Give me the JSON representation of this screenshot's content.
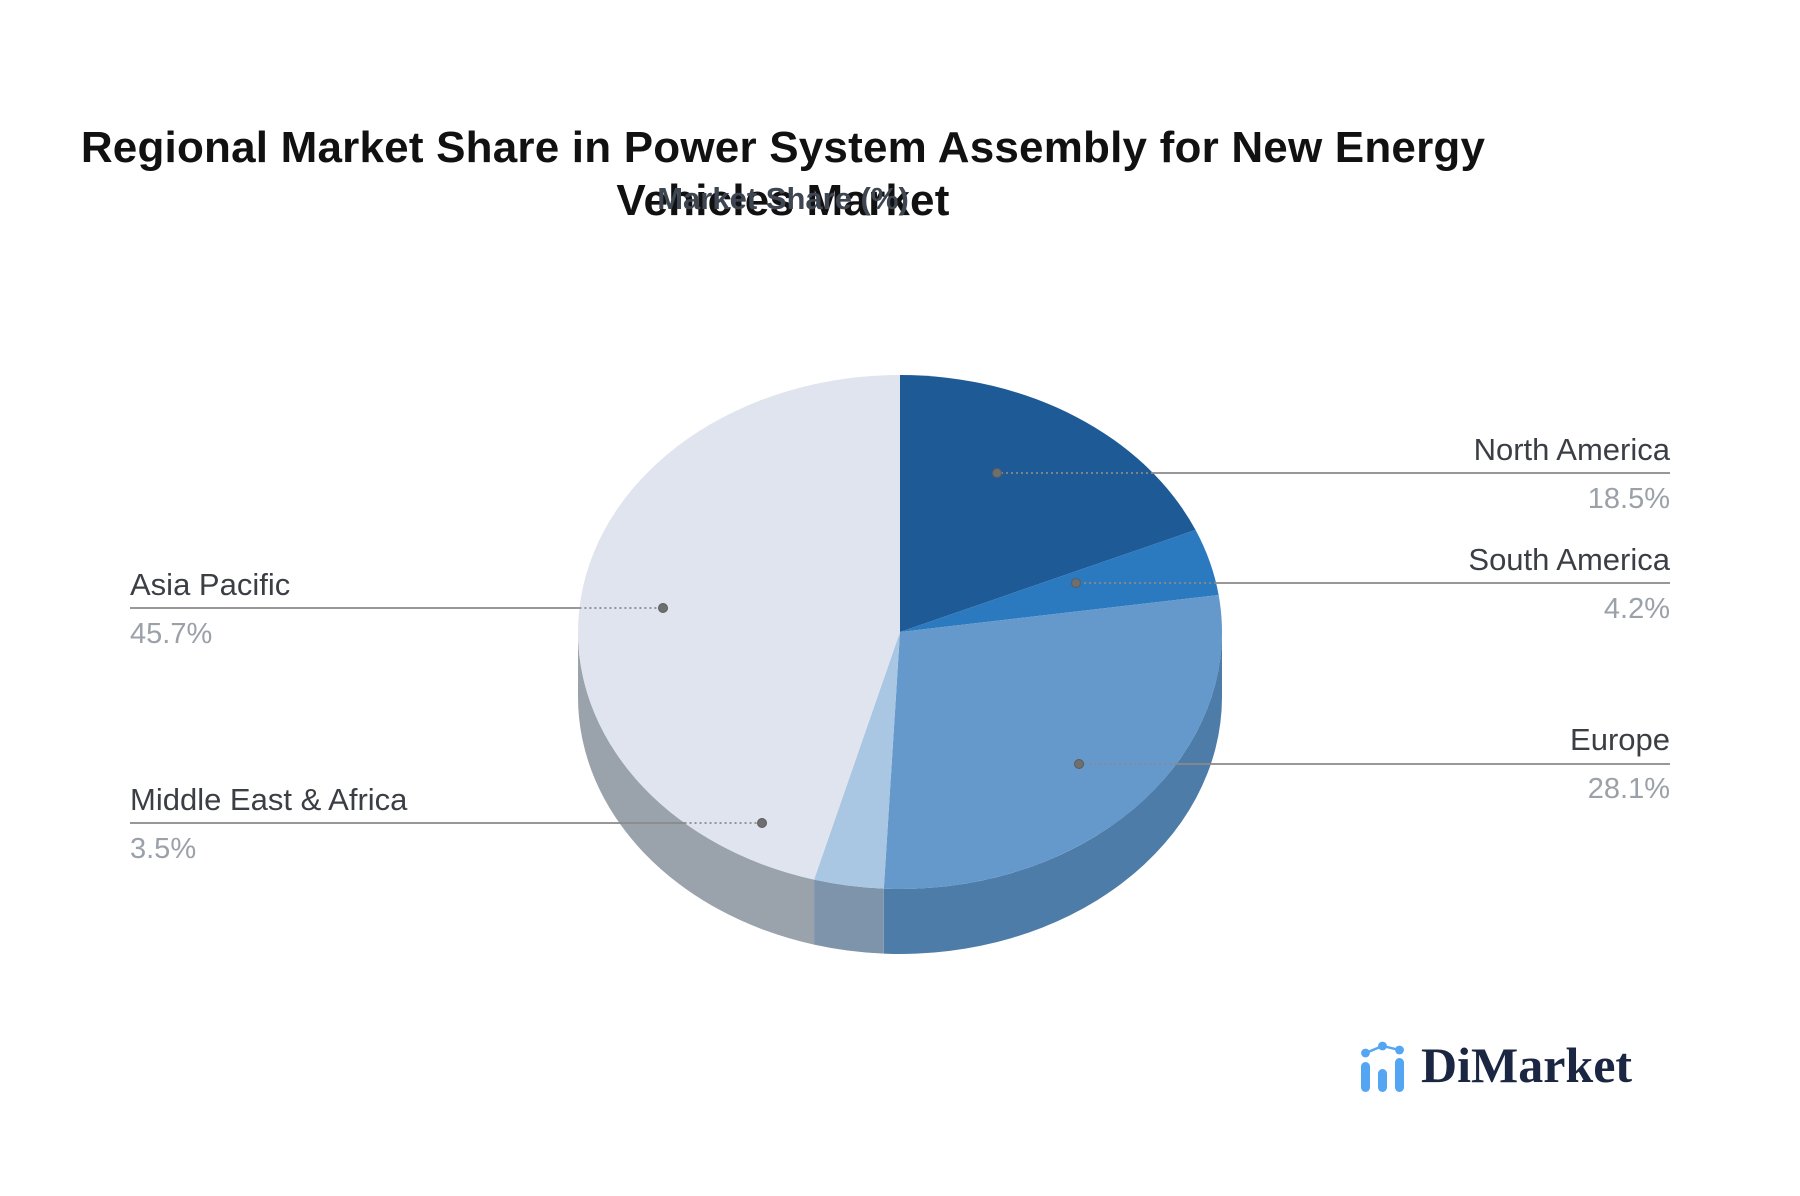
{
  "title": "Regional Market Share in Power System Assembly for New Energy Vehicles Market",
  "subtitle": "Market Share (%)",
  "chart_data": {
    "type": "pie",
    "style": "3d-pie",
    "unit": "%",
    "direction": "clockwise",
    "start_angle_deg": 0,
    "legend_position": "callout-labels",
    "grid": false,
    "background": "#ffffff",
    "slices": [
      {
        "label": "North America",
        "value": 18.5,
        "pct": "18.5%",
        "color": "#1e5a96",
        "side_color": "#174875",
        "callout_side": "right"
      },
      {
        "label": "South America",
        "value": 4.2,
        "pct": "4.2%",
        "color": "#2b7ac0",
        "side_color": "#22619a",
        "callout_side": "right"
      },
      {
        "label": "Europe",
        "value": 28.1,
        "pct": "28.1%",
        "color": "#6598cb",
        "side_color": "#4d7ca8",
        "callout_side": "right"
      },
      {
        "label": "Middle East & Africa",
        "value": 3.5,
        "pct": "3.5%",
        "color": "#a9c6e2",
        "side_color": "#7e94ab",
        "callout_side": "left"
      },
      {
        "label": "Asia Pacific",
        "value": 45.7,
        "pct": "45.7%",
        "color": "#dfe4ee",
        "side_color": "#9aa2ab",
        "callout_side": "left"
      }
    ],
    "leader_line_color": "#8a8a8a",
    "label_color": "#3b3f45",
    "value_color": "#9ba1a8"
  },
  "logo": {
    "text": "DiMarket",
    "icon": "bar-line-chart-icon",
    "text_color": "#1b2742",
    "accent_color": "#54a6f2"
  }
}
